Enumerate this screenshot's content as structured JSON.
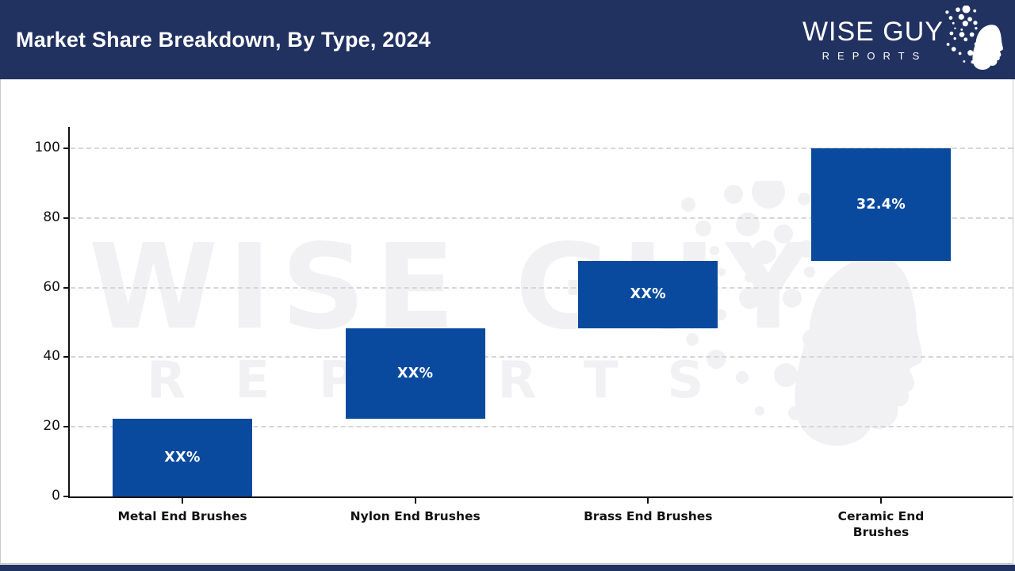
{
  "header": {
    "title": "Market Share Breakdown, By Type, 2024",
    "logo": {
      "line1": "WISE GUY",
      "line2": "REPORTS"
    }
  },
  "watermark": {
    "line1": "WISE GUY",
    "line2": "REPORTS"
  },
  "colors": {
    "header_bg": "#213160",
    "footer_bg": "#213160",
    "bar": "#0a4a9e",
    "grid": "#d6d6d6",
    "axis": "#111111",
    "bar_label_text": "#ffffff",
    "watermark": "#f1f1f4",
    "panel_border": "#c9c9c9"
  },
  "chart_data": {
    "type": "bar",
    "subtype": "waterfall",
    "title": "Market Share Breakdown, By Type, 2024",
    "categories": [
      "Metal End Brushes",
      "Nylon End Brushes",
      "Brass End Brushes",
      "Ceramic End Brushes"
    ],
    "segments": [
      {
        "category": "Metal End Brushes",
        "start": 0,
        "end": 22.3,
        "value": 22.3,
        "label": "XX%"
      },
      {
        "category": "Nylon End Brushes",
        "start": 22.3,
        "end": 48.4,
        "value": 26.1,
        "label": "XX%"
      },
      {
        "category": "Brass End Brushes",
        "start": 48.4,
        "end": 67.6,
        "value": 19.2,
        "label": "XX%"
      },
      {
        "category": "Ceramic End Brushes",
        "start": 67.6,
        "end": 100,
        "value": 32.4,
        "label": "32.4%"
      }
    ],
    "yticks": [
      0,
      20,
      40,
      60,
      80,
      100
    ],
    "ylim": [
      0,
      106
    ],
    "xlabel": "",
    "ylabel": "",
    "grid": "horizontal-dashed",
    "legend": "none"
  }
}
